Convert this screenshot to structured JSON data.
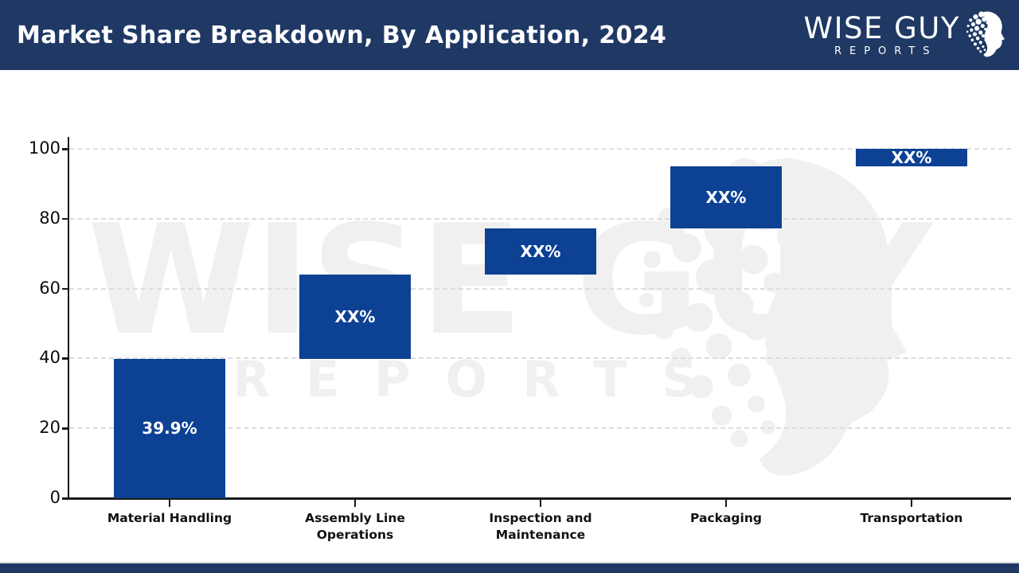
{
  "header": {
    "title": "Market Share Breakdown, By Application, 2024",
    "bg_color": "#1f3864",
    "logo": {
      "line1": "WISE GUY",
      "line2": "REPORTS"
    }
  },
  "watermark": {
    "line1": "WISE GUY",
    "line2": "REPORTS"
  },
  "footer": {
    "bg_color": "#1f3864"
  },
  "chart_data": {
    "type": "bar",
    "subtype": "waterfall",
    "title": "Market Share Breakdown, By Application, 2024",
    "bar_color": "#0d4194",
    "grid": "horizontal-dashed",
    "ylim": [
      0,
      100
    ],
    "yticks": [
      0,
      20,
      40,
      60,
      80,
      100
    ],
    "categories": [
      "Material Handling",
      "Assembly Line Operations",
      "Inspection and Maintenance",
      "Packaging",
      "Transportation"
    ],
    "segments": [
      {
        "category": "Material Handling",
        "label": "39.9%",
        "start": 0,
        "end": 39.9
      },
      {
        "category": "Assembly Line Operations",
        "label": "XX%",
        "start": 39.9,
        "end": 64
      },
      {
        "category": "Inspection and Maintenance",
        "label": "XX%",
        "start": 64,
        "end": 77.3
      },
      {
        "category": "Packaging",
        "label": "XX%",
        "start": 77.3,
        "end": 95
      },
      {
        "category": "Transportation",
        "label": "XX%",
        "start": 95,
        "end": 100
      }
    ]
  }
}
